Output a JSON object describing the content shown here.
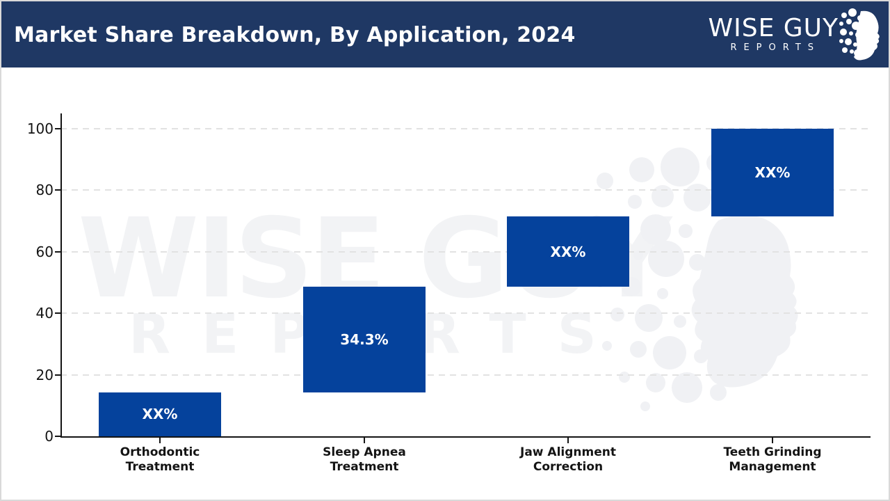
{
  "header": {
    "title": "Market Share Breakdown, By Application, 2024",
    "logo": {
      "line1": "WISE GUY",
      "line2": "REPORTS"
    }
  },
  "watermark": {
    "line1": "WISE GUY",
    "line2": "REPORTS",
    "line2_display": "R E P O R T S"
  },
  "colors": {
    "header_bg": "#1f3864",
    "bar": "#05429c",
    "watermark": "#f2f3f5",
    "gridline": "#e2e2e2",
    "axis": "#141414"
  },
  "chart_data": {
    "type": "bar",
    "subtype": "waterfall",
    "title": "Market Share Breakdown, By Application, 2024",
    "xlabel": "",
    "ylabel": "",
    "categories": [
      "Orthodontic Treatment",
      "Sleep Apnea Treatment",
      "Jaw Alignment Correction",
      "Teeth Grinding Management"
    ],
    "category_lines": [
      [
        "Orthodontic",
        "Treatment"
      ],
      [
        "Sleep Apnea",
        "Treatment"
      ],
      [
        "Jaw Alignment",
        "Correction"
      ],
      [
        "Teeth Grinding",
        "Management"
      ]
    ],
    "bars": [
      {
        "label": "XX%",
        "start": 0,
        "end": 14.3
      },
      {
        "label": "34.3%",
        "start": 14.3,
        "end": 48.6
      },
      {
        "label": "XX%",
        "start": 48.6,
        "end": 71.4
      },
      {
        "label": "XX%",
        "start": 71.4,
        "end": 100
      }
    ],
    "ylim": [
      0,
      100
    ],
    "yticks": [
      0,
      20,
      40,
      60,
      80,
      100
    ],
    "grid": "horizontal dashed",
    "legend": "none"
  }
}
